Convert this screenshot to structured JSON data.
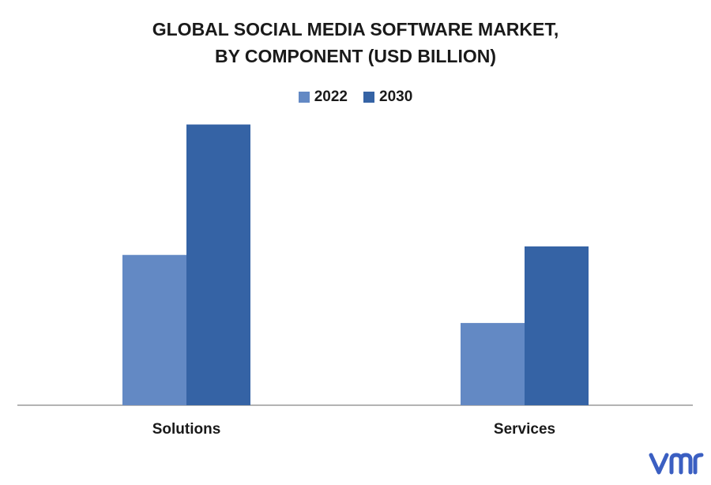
{
  "title_line1": "GLOBAL SOCIAL MEDIA SOFTWARE MARKET,",
  "title_line2": "BY COMPONENT (USD BILLION)",
  "logo_text": "vmr",
  "colors": {
    "2022": "#6389c4",
    "2030": "#3563a5",
    "axis": "#9a9a9a",
    "logo": "#3b5fc2"
  },
  "chart_data": {
    "type": "bar",
    "title": "GLOBAL SOCIAL MEDIA SOFTWARE MARKET, BY COMPONENT (USD BILLION)",
    "categories": [
      "Solutions",
      "Services"
    ],
    "series": [
      {
        "name": "2022",
        "values": [
          5.3,
          2.9
        ]
      },
      {
        "name": "2030",
        "values": [
          9.9,
          5.6
        ]
      }
    ],
    "ylim": [
      0,
      10
    ],
    "xlabel": "",
    "ylabel": "",
    "grid": false,
    "legend": "top-center"
  }
}
